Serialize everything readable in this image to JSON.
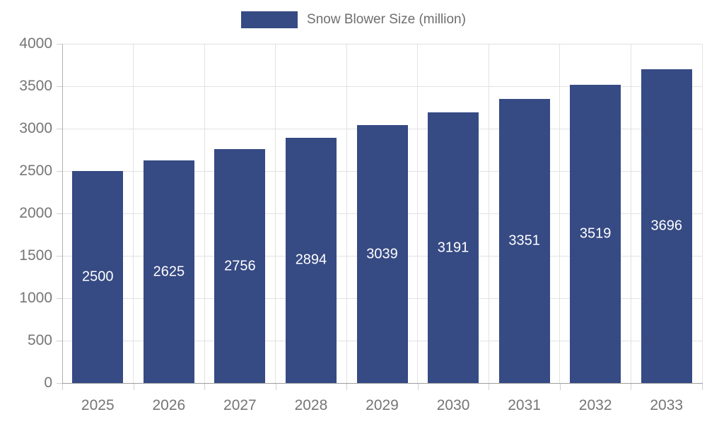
{
  "chart_data": {
    "type": "bar",
    "title": "Snow Blower Size (million)",
    "legend": {
      "label": "Snow Blower Size (million)",
      "position": "top"
    },
    "categories": [
      "2025",
      "2026",
      "2027",
      "2028",
      "2029",
      "2030",
      "2031",
      "2032",
      "2033"
    ],
    "series": [
      {
        "name": "Snow Blower Size (million)",
        "values": [
          2500,
          2625,
          2756,
          2894,
          3039,
          3191,
          3351,
          3519,
          3696
        ]
      }
    ],
    "xlabel": "",
    "ylabel": "",
    "ylim": [
      0,
      4000
    ],
    "ytick_step": 500,
    "yticks": [
      0,
      500,
      1000,
      1500,
      2000,
      2500,
      3000,
      3500,
      4000
    ],
    "grid": true,
    "value_labels": "inside-center"
  },
  "colors": {
    "bar": "#364a84",
    "grid": "#e2e2e2",
    "axis": "#9e9e9e",
    "tick": "#cfcfcf",
    "axis_text": "#757575",
    "legend_text": "#6e6e6e",
    "value_label_text": "#ffffff",
    "background": "#ffffff"
  }
}
